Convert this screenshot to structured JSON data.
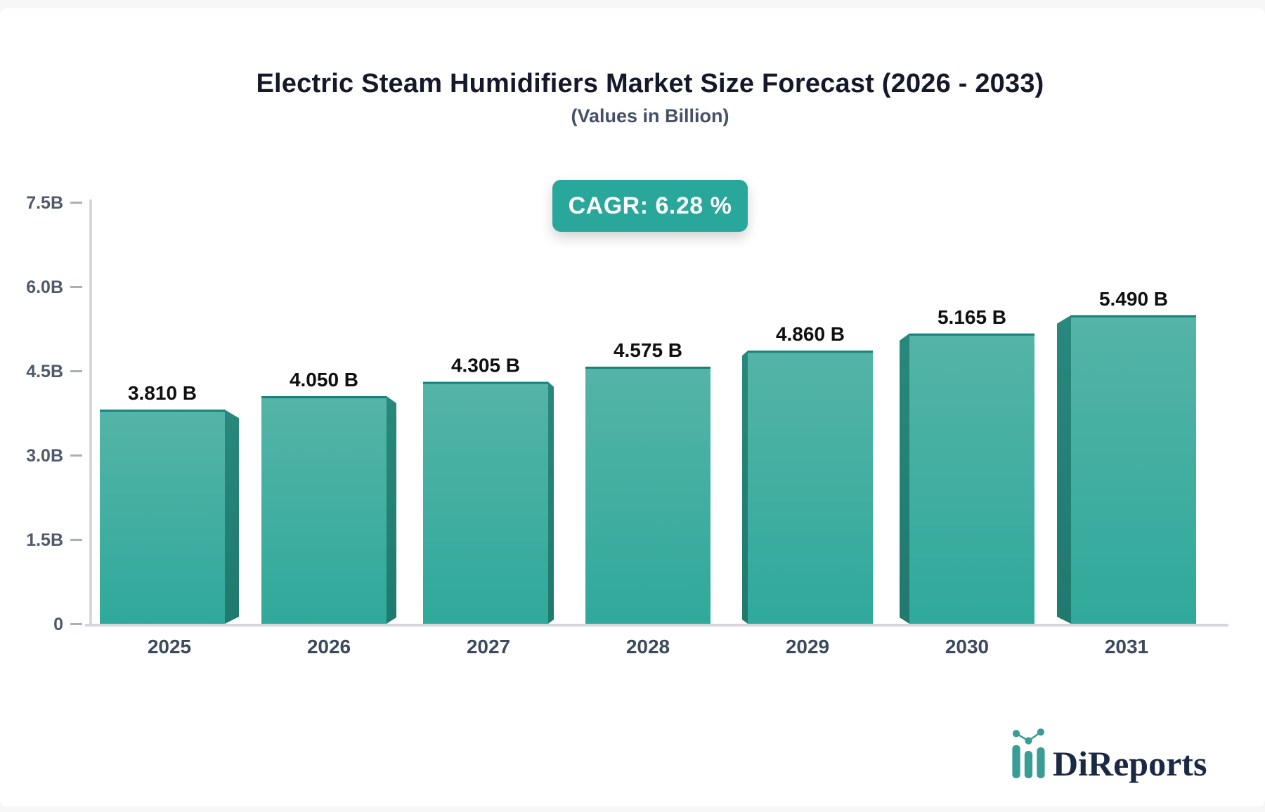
{
  "page": {
    "background": "#F7F7F8",
    "card_background": "#FFFFFF"
  },
  "header": {
    "title": "Electric Steam Humidifiers Market Size Forecast (2026 - 2033)",
    "subtitle": "(Values in Billion)",
    "cagr_badge": "CAGR: 6.28 %"
  },
  "chart_data": {
    "type": "bar",
    "title": "Electric Steam Humidifiers Market Size Forecast (2026 - 2033)",
    "subtitle": "(Values in Billion)",
    "annotation": "CAGR: 6.28 %",
    "categories": [
      "2025",
      "2026",
      "2027",
      "2028",
      "2029",
      "2030",
      "2031"
    ],
    "values": [
      3.81,
      4.05,
      4.305,
      4.575,
      4.86,
      5.165,
      5.49
    ],
    "value_labels": [
      "3.810 B",
      "4.050 B",
      "4.305 B",
      "4.575 B",
      "4.860 B",
      "5.165 B",
      "5.490 B"
    ],
    "xlabel": "",
    "ylabel": "",
    "ylim": [
      0,
      7.5
    ],
    "y_ticks": [
      {
        "value": 7.5,
        "label": "7.5B"
      },
      {
        "value": 6.0,
        "label": "6.0B"
      },
      {
        "value": 4.5,
        "label": "4.5B"
      },
      {
        "value": 3.0,
        "label": "3.0B"
      },
      {
        "value": 1.5,
        "label": "1.5B"
      },
      {
        "value": 0,
        "label": "0"
      }
    ],
    "grid": false,
    "legend": null,
    "bar_style": "3d-perspective-center",
    "colors": {
      "accent_teal": "#2AA79B",
      "bar_face_top": "#54B4A7",
      "bar_face_bottom": "#2FA99B",
      "bar_side_top": "#28887C",
      "bar_side_bottom": "#20796E",
      "bar_top_edge": "#16837B",
      "axis_line": "#D6D6DC",
      "tick_dash": "#ABB0B8",
      "y_label": "#4E596A",
      "x_label": "#3C4A5E",
      "value_label": "#0F0F0F",
      "title": "#14182A",
      "subtitle": "#44506A",
      "logo_navy": "#1B2A44",
      "logo_teal": "#3A9D95"
    }
  },
  "branding": {
    "logo_text": "DiReports",
    "logo_icon": "bar-line-chart-icon"
  }
}
